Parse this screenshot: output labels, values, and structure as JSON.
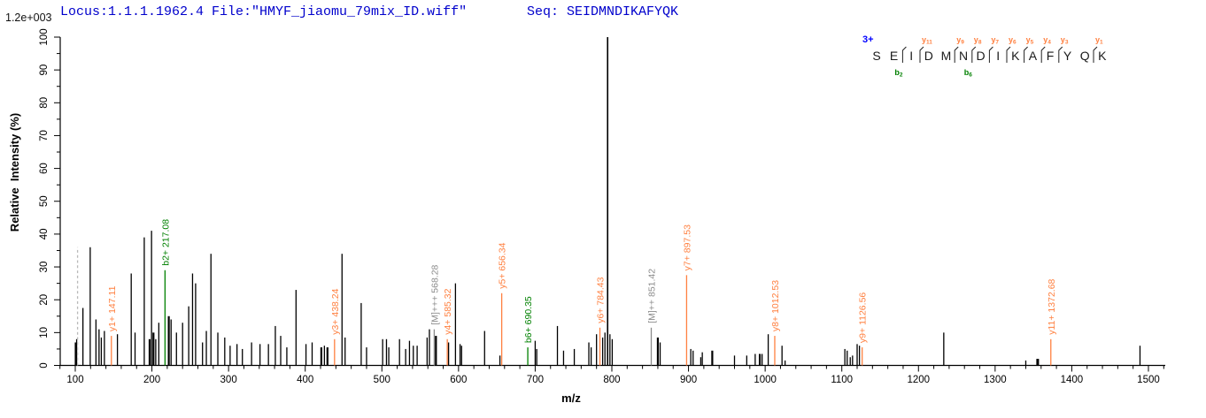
{
  "header": {
    "locus_line": "Locus:1.1.1.1962.4 File:\"HMYF_jiaomu_79mix_ID.wiff\"",
    "seq_line": "Seq: SEIDMNDIKAFYQK",
    "intensity_scale": "1.2e+003"
  },
  "peptide_panel": {
    "charge": "3+",
    "residues": [
      "S",
      "E",
      "I",
      "D",
      "M",
      "N",
      "D",
      "I",
      "K",
      "A",
      "F",
      "Y",
      "Q",
      "K"
    ],
    "fragments": [
      {
        "after": 1,
        "ion": "b2",
        "series": "b"
      },
      {
        "after": 2,
        "ion": "y11",
        "series": "y"
      },
      {
        "after": 4,
        "ion": "y9",
        "series": "y"
      },
      {
        "after": 5,
        "ion": "y8",
        "series": "y"
      },
      {
        "after": 5,
        "ion": "b6",
        "series": "b"
      },
      {
        "after": 6,
        "ion": "y7",
        "series": "y"
      },
      {
        "after": 7,
        "ion": "y6",
        "series": "y"
      },
      {
        "after": 8,
        "ion": "y5",
        "series": "y"
      },
      {
        "after": 9,
        "ion": "y4",
        "series": "y"
      },
      {
        "after": 10,
        "ion": "y3",
        "series": "y"
      },
      {
        "after": 12,
        "ion": "y1",
        "series": "y"
      }
    ]
  },
  "chart_data": {
    "type": "bar",
    "subtype": "ms2-stick-spectrum",
    "title": "Locus:1.1.1.1962.4 File:\"HMYF_jiaomu_79mix_ID.wiff\"  Seq: SEIDMNDIKAFYQK",
    "xlabel": "m/z",
    "ylabel": "Relative  Intensity (%)",
    "xlim": [
      80,
      1530
    ],
    "ylim": [
      0,
      100
    ],
    "grid": false,
    "x_ticks": [
      100,
      200,
      300,
      400,
      500,
      600,
      700,
      800,
      900,
      1000,
      1100,
      1200,
      1300,
      1400,
      1500
    ],
    "x_minor_step": 20,
    "y_ticks": [
      0,
      10,
      20,
      30,
      40,
      50,
      60,
      70,
      80,
      90,
      100
    ],
    "y_minor_step": 5,
    "colors": {
      "black": "#000000",
      "orange": "#ff8040",
      "green": "#008000",
      "gray": "#8c8c8c",
      "dashed": "#b9b9b9"
    },
    "peaks": [
      {
        "m": 100.6,
        "i": 7,
        "c": "black",
        "w": 2.2
      },
      {
        "m": 101.8,
        "i": 8,
        "c": "black"
      },
      {
        "m": 103,
        "i": 36,
        "c": "dashed"
      },
      {
        "m": 110,
        "i": 17.5,
        "c": "black"
      },
      {
        "m": 119.5,
        "i": 36,
        "c": "black"
      },
      {
        "m": 127,
        "i": 14,
        "c": "black"
      },
      {
        "m": 131,
        "i": 11,
        "c": "black"
      },
      {
        "m": 134,
        "i": 8.5,
        "c": "black"
      },
      {
        "m": 138,
        "i": 10.5,
        "c": "black"
      },
      {
        "m": 147.11,
        "i": 9,
        "c": "orange",
        "l": "y1+ 147.11"
      },
      {
        "m": 155,
        "i": 9.5,
        "c": "black"
      },
      {
        "m": 173,
        "i": 28,
        "c": "black"
      },
      {
        "m": 178,
        "i": 10,
        "c": "black"
      },
      {
        "m": 190,
        "i": 39,
        "c": "black"
      },
      {
        "m": 197,
        "i": 8,
        "c": "black",
        "w": 2.2
      },
      {
        "m": 199.5,
        "i": 41,
        "c": "black"
      },
      {
        "m": 202,
        "i": 10,
        "c": "black",
        "w": 2.2
      },
      {
        "m": 205,
        "i": 8,
        "c": "black"
      },
      {
        "m": 209,
        "i": 13,
        "c": "black"
      },
      {
        "m": 217.08,
        "i": 29,
        "c": "green",
        "l": "b2+ 217.08"
      },
      {
        "m": 222,
        "i": 15,
        "c": "black",
        "w": 2.2
      },
      {
        "m": 225,
        "i": 14,
        "c": "black"
      },
      {
        "m": 232,
        "i": 10,
        "c": "black"
      },
      {
        "m": 240,
        "i": 13,
        "c": "black"
      },
      {
        "m": 248,
        "i": 18,
        "c": "black"
      },
      {
        "m": 253,
        "i": 28,
        "c": "black"
      },
      {
        "m": 257,
        "i": 25,
        "c": "black"
      },
      {
        "m": 266,
        "i": 7,
        "c": "black"
      },
      {
        "m": 271,
        "i": 10.5,
        "c": "black"
      },
      {
        "m": 277,
        "i": 34,
        "c": "black"
      },
      {
        "m": 286,
        "i": 10,
        "c": "black"
      },
      {
        "m": 295,
        "i": 8.5,
        "c": "black"
      },
      {
        "m": 302,
        "i": 6,
        "c": "black"
      },
      {
        "m": 311,
        "i": 6.5,
        "c": "black"
      },
      {
        "m": 318,
        "i": 5,
        "c": "black"
      },
      {
        "m": 330,
        "i": 7,
        "c": "black"
      },
      {
        "m": 341,
        "i": 6.5,
        "c": "black"
      },
      {
        "m": 352,
        "i": 6.5,
        "c": "black"
      },
      {
        "m": 361,
        "i": 12,
        "c": "black"
      },
      {
        "m": 368,
        "i": 9,
        "c": "black"
      },
      {
        "m": 376,
        "i": 5.5,
        "c": "black"
      },
      {
        "m": 388,
        "i": 23,
        "c": "black"
      },
      {
        "m": 401,
        "i": 6.5,
        "c": "black"
      },
      {
        "m": 409,
        "i": 7,
        "c": "black"
      },
      {
        "m": 421,
        "i": 5.5,
        "c": "black",
        "w": 2.2
      },
      {
        "m": 425,
        "i": 6,
        "c": "black"
      },
      {
        "m": 429,
        "i": 5.5,
        "c": "black",
        "w": 2.2
      },
      {
        "m": 438.24,
        "i": 8,
        "c": "orange",
        "l": "y3+ 438.24"
      },
      {
        "m": 448,
        "i": 34,
        "c": "black"
      },
      {
        "m": 452,
        "i": 8.5,
        "c": "black"
      },
      {
        "m": 473,
        "i": 19,
        "c": "black"
      },
      {
        "m": 480,
        "i": 5.5,
        "c": "black"
      },
      {
        "m": 501,
        "i": 8,
        "c": "black"
      },
      {
        "m": 506,
        "i": 8,
        "c": "black"
      },
      {
        "m": 509,
        "i": 5.5,
        "c": "black"
      },
      {
        "m": 523,
        "i": 8,
        "c": "black"
      },
      {
        "m": 531,
        "i": 5,
        "c": "black"
      },
      {
        "m": 536,
        "i": 7.5,
        "c": "black"
      },
      {
        "m": 541,
        "i": 6,
        "c": "black"
      },
      {
        "m": 546,
        "i": 6,
        "c": "black"
      },
      {
        "m": 559,
        "i": 8.5,
        "c": "black"
      },
      {
        "m": 562,
        "i": 11,
        "c": "black"
      },
      {
        "m": 568.28,
        "i": 11,
        "c": "gray",
        "l": "[M]+++ 568.28"
      },
      {
        "m": 570.5,
        "i": 9,
        "c": "black",
        "w": 2.2
      },
      {
        "m": 585.32,
        "i": 8,
        "c": "orange",
        "l": "y4+ 585.32"
      },
      {
        "m": 587,
        "i": 7,
        "c": "black"
      },
      {
        "m": 596,
        "i": 25,
        "c": "black"
      },
      {
        "m": 602,
        "i": 6.5,
        "c": "black"
      },
      {
        "m": 604,
        "i": 6,
        "c": "black"
      },
      {
        "m": 634,
        "i": 10.5,
        "c": "black"
      },
      {
        "m": 654,
        "i": 3,
        "c": "black"
      },
      {
        "m": 656.34,
        "i": 22,
        "c": "orange",
        "l": "y5+ 656.34"
      },
      {
        "m": 690.35,
        "i": 5.5,
        "c": "green",
        "l": "b6+ 690.35"
      },
      {
        "m": 700,
        "i": 7.5,
        "c": "black"
      },
      {
        "m": 702,
        "i": 5,
        "c": "black"
      },
      {
        "m": 729,
        "i": 12,
        "c": "black"
      },
      {
        "m": 737,
        "i": 4.5,
        "c": "black"
      },
      {
        "m": 751,
        "i": 5,
        "c": "black"
      },
      {
        "m": 770,
        "i": 7,
        "c": "black"
      },
      {
        "m": 773,
        "i": 5.5,
        "c": "black"
      },
      {
        "m": 780,
        "i": 9.5,
        "c": "black"
      },
      {
        "m": 784.43,
        "i": 11.5,
        "c": "orange",
        "l": "y6+ 784.43"
      },
      {
        "m": 788,
        "i": 8.5,
        "c": "black"
      },
      {
        "m": 791,
        "i": 10,
        "c": "black"
      },
      {
        "m": 794.5,
        "i": 100,
        "c": "black",
        "w": 1.6
      },
      {
        "m": 797.5,
        "i": 9.5,
        "c": "black"
      },
      {
        "m": 800.5,
        "i": 8,
        "c": "black"
      },
      {
        "m": 851.42,
        "i": 11.5,
        "c": "gray",
        "l": "[M]++ 851.42"
      },
      {
        "m": 860,
        "i": 8.5,
        "c": "black",
        "w": 2.2
      },
      {
        "m": 863,
        "i": 7,
        "c": "black"
      },
      {
        "m": 897.53,
        "i": 27.5,
        "c": "orange",
        "l": "y7+ 897.53"
      },
      {
        "m": 903,
        "i": 5,
        "c": "black"
      },
      {
        "m": 906,
        "i": 4.5,
        "c": "black"
      },
      {
        "m": 916,
        "i": 2.5,
        "c": "black"
      },
      {
        "m": 918,
        "i": 4,
        "c": "black"
      },
      {
        "m": 931,
        "i": 4.5,
        "c": "black",
        "w": 2.2
      },
      {
        "m": 960,
        "i": 3,
        "c": "black"
      },
      {
        "m": 976,
        "i": 3,
        "c": "black"
      },
      {
        "m": 987,
        "i": 3.5,
        "c": "black"
      },
      {
        "m": 993,
        "i": 3.5,
        "c": "black",
        "w": 2.2
      },
      {
        "m": 996,
        "i": 3.5,
        "c": "black"
      },
      {
        "m": 1004,
        "i": 9.5,
        "c": "black"
      },
      {
        "m": 1012.53,
        "i": 9,
        "c": "orange",
        "l": "y8+ 1012.53"
      },
      {
        "m": 1022,
        "i": 6,
        "c": "black"
      },
      {
        "m": 1026,
        "i": 1.5,
        "c": "black"
      },
      {
        "m": 1104,
        "i": 5,
        "c": "black"
      },
      {
        "m": 1107,
        "i": 4.5,
        "c": "black"
      },
      {
        "m": 1111,
        "i": 2.5,
        "c": "black"
      },
      {
        "m": 1114,
        "i": 3,
        "c": "black"
      },
      {
        "m": 1120,
        "i": 6.5,
        "c": "black"
      },
      {
        "m": 1123,
        "i": 6,
        "c": "black"
      },
      {
        "m": 1126.56,
        "i": 5.5,
        "c": "orange",
        "l": "y9+ 1126.56"
      },
      {
        "m": 1233,
        "i": 10,
        "c": "black"
      },
      {
        "m": 1340,
        "i": 1.5,
        "c": "black"
      },
      {
        "m": 1355.5,
        "i": 2,
        "c": "black",
        "w": 3
      },
      {
        "m": 1372.68,
        "i": 8,
        "c": "orange",
        "l": "y11+ 1372.68"
      },
      {
        "m": 1489,
        "i": 6,
        "c": "black"
      }
    ]
  }
}
